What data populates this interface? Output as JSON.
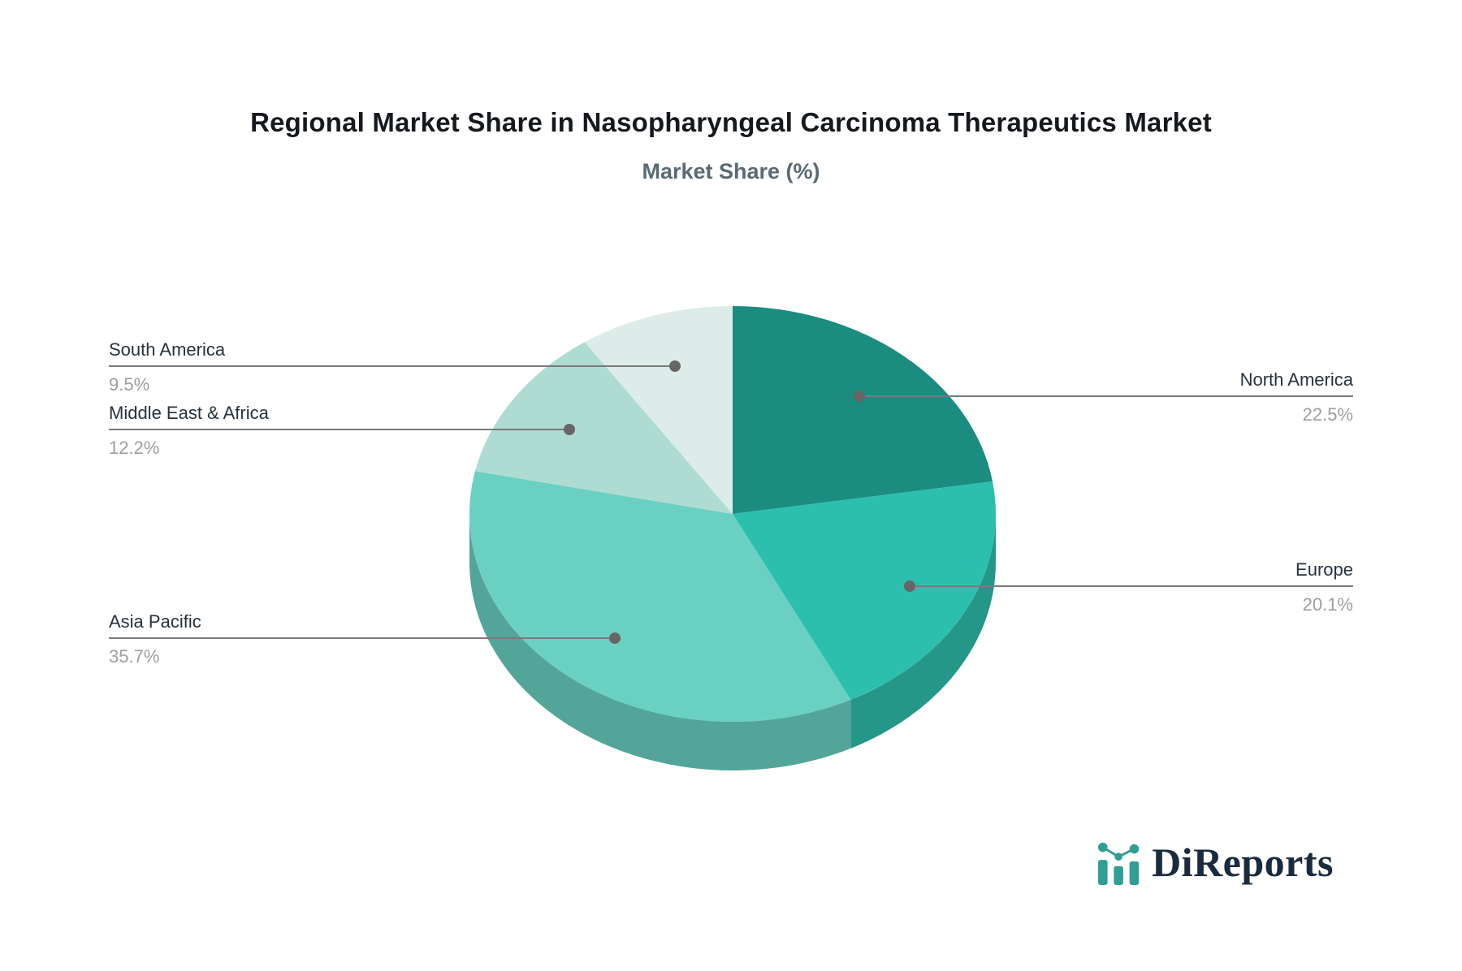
{
  "header": {
    "title": "Regional Market Share in Nasopharyngeal Carcinoma Therapeutics Market",
    "subtitle": "Market Share (%)"
  },
  "chart_data": {
    "type": "pie",
    "style": "3d-depth",
    "title": "Regional Market Share in Nasopharyngeal Carcinoma Therapeutics Market",
    "subtitle": "Market Share (%)",
    "unit": "%",
    "start_angle": "12-oclock",
    "direction": "clockwise",
    "legend_position": "callout-labels",
    "segments": [
      {
        "label": "North America",
        "value": 22.5,
        "pct_label": "22.5%",
        "color": "#1a8c80",
        "callout_side": "right"
      },
      {
        "label": "Europe",
        "value": 20.1,
        "pct_label": "20.1%",
        "color": "#2dbfae",
        "callout_side": "right"
      },
      {
        "label": "Asia Pacific",
        "value": 35.7,
        "pct_label": "35.7%",
        "color": "#6ad1c2",
        "callout_side": "left"
      },
      {
        "label": "Middle East & Africa",
        "value": 12.2,
        "pct_label": "12.2%",
        "color": "#aedcd3",
        "callout_side": "left"
      },
      {
        "label": "South America",
        "value": 9.5,
        "pct_label": "9.5%",
        "color": "#ddece8",
        "callout_side": "left"
      }
    ],
    "colors": {
      "leader_line": "#7a7a7a",
      "leader_dot": "#666666",
      "label_text": "#26323c",
      "pct_text": "#9e9e9e"
    }
  },
  "branding": {
    "logo_text": "DiReports",
    "logo_icon": "bar-line-chart-icon",
    "logo_accent_color": "#2f9e93",
    "logo_text_color": "#1b2b3f"
  }
}
